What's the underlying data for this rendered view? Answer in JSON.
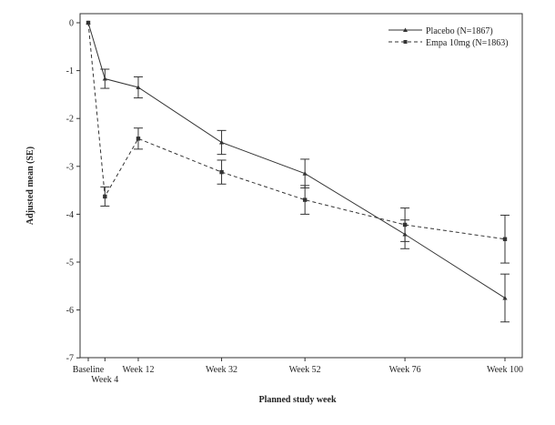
{
  "chart_data": {
    "type": "line",
    "title": "",
    "xlabel": "Planned study week",
    "ylabel": "Adjusted mean (SE)",
    "x_weeks": [
      0,
      4,
      12,
      32,
      52,
      76,
      100
    ],
    "x_tick_labels": [
      "Baseline",
      "Week 4",
      "Week 12",
      "Week 32",
      "Week 52",
      "Week 76",
      "Week 100"
    ],
    "y_ticks": [
      0,
      -1,
      -2,
      -3,
      -4,
      -5,
      -6,
      -7
    ],
    "ylim": [
      -7,
      0.2
    ],
    "legend_position": "top-right",
    "series": [
      {
        "name": "Placebo (N=1867)",
        "line_style": "solid",
        "marker": "triangle",
        "values": [
          0,
          -1.17,
          -1.35,
          -2.5,
          -3.15,
          -4.42,
          -5.75
        ],
        "error": [
          0,
          0.2,
          0.22,
          0.25,
          0.3,
          0.3,
          0.5
        ]
      },
      {
        "name": "Empa 10mg (N=1863)",
        "line_style": "dashed",
        "marker": "square",
        "values": [
          0,
          -3.63,
          -2.42,
          -3.12,
          -3.7,
          -4.22,
          -4.52
        ],
        "error": [
          0,
          0.2,
          0.22,
          0.25,
          0.3,
          0.35,
          0.5
        ]
      }
    ]
  }
}
